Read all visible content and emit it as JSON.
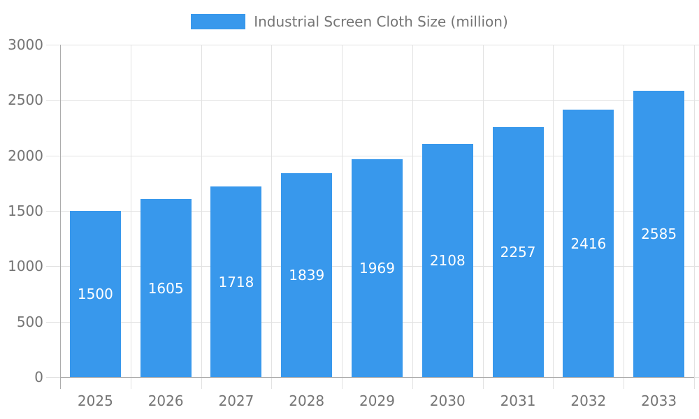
{
  "legend": {
    "label": "Industrial Screen Cloth Size (million)"
  },
  "chart_data": {
    "type": "bar",
    "title": "Industrial Screen Cloth Size (million)",
    "categories": [
      "2025",
      "2026",
      "2027",
      "2028",
      "2029",
      "2030",
      "2031",
      "2032",
      "2033"
    ],
    "values": [
      1500,
      1605,
      1718,
      1839,
      1969,
      2108,
      2257,
      2416,
      2585
    ],
    "series_name": "Industrial Screen Cloth Size (million)",
    "xlabel": "",
    "ylabel": "",
    "ylim": [
      0,
      3000
    ],
    "yticks": [
      0,
      500,
      1000,
      1500,
      2000,
      2500,
      3000
    ],
    "grid": true,
    "legend_position": "top",
    "bar_labels_shown": true,
    "bar_label_position": "center-inside",
    "colors": {
      "bar": "#3898EC",
      "bar_label": "#FFFFFF",
      "axis_text": "#757575",
      "axis_line": "#ABABAB",
      "gridline": "#E2E2E2",
      "background": "#FFFFFF"
    }
  }
}
